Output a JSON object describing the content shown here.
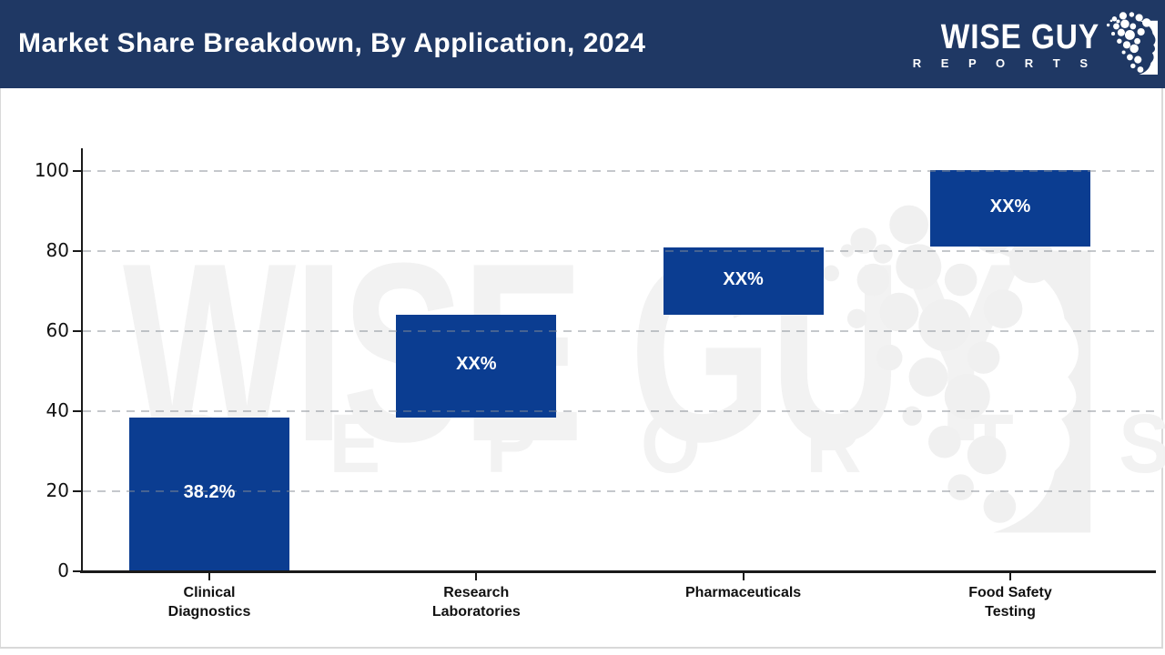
{
  "header": {
    "title": "Market Share Breakdown, By Application, 2024",
    "logo": {
      "name": "WISE GUY",
      "sub": "R E P O R T S"
    }
  },
  "watermark": {
    "line1": "WISE GUY",
    "line2": "R E P O R T S"
  },
  "colors": {
    "header_bg": "#1f3864",
    "bar": "#0b3d91",
    "axis": "#1a1a1a",
    "grid": "#c9c9c9",
    "watermark": "#f2f2f2",
    "frame_border": "#d9d9d9",
    "bar_label": "#ffffff"
  },
  "chart_data": {
    "type": "bar",
    "subtype": "floating-waterfall",
    "title": "Market Share Breakdown, By Application, 2024",
    "categories": [
      "Clinical\nDiagnostics",
      "Research\nLaboratories",
      "Pharmaceuticals",
      "Food Safety\nTesting"
    ],
    "bars": [
      {
        "category": "Clinical Diagnostics",
        "start": 0,
        "end": 38.2,
        "label": "38.2%"
      },
      {
        "category": "Research Laboratories",
        "start": 38.2,
        "end": 63.9,
        "label": "XX%"
      },
      {
        "category": "Pharmaceuticals",
        "start": 63.9,
        "end": 80.7,
        "label": "XX%"
      },
      {
        "category": "Food Safety Testing",
        "start": 80.9,
        "end": 100,
        "label": "XX%"
      }
    ],
    "xlabel": "",
    "ylabel": "",
    "ylim": [
      0,
      105
    ],
    "yticks": [
      0,
      20,
      40,
      60,
      80,
      100
    ],
    "grid": "dashed-horizontal",
    "legend": "none"
  }
}
